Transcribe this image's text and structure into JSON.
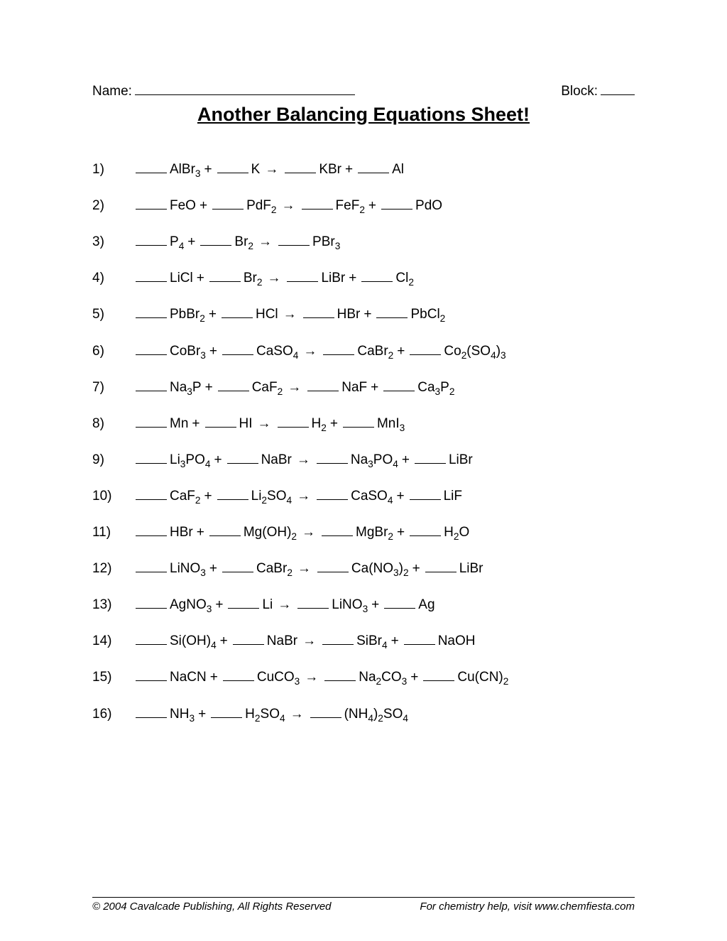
{
  "header": {
    "name_label": "Name:",
    "block_label": "Block:"
  },
  "title": "Another Balancing Equations Sheet!",
  "arrow": "→",
  "plus": "+",
  "problems": [
    {
      "n": "1)",
      "terms": [
        [
          "AlBr",
          "3"
        ],
        [
          "K",
          ""
        ]
      ],
      "prods": [
        [
          "KBr",
          ""
        ],
        [
          "Al",
          ""
        ]
      ]
    },
    {
      "n": "2)",
      "terms": [
        [
          "FeO",
          ""
        ],
        [
          "PdF",
          "2"
        ]
      ],
      "prods": [
        [
          "FeF",
          "2"
        ],
        [
          "PdO",
          ""
        ]
      ]
    },
    {
      "n": "3)",
      "terms": [
        [
          "P",
          "4"
        ],
        [
          "Br",
          "2"
        ]
      ],
      "prods": [
        [
          "PBr",
          "3"
        ]
      ]
    },
    {
      "n": "4)",
      "terms": [
        [
          "LiCl",
          ""
        ],
        [
          "Br",
          "2"
        ]
      ],
      "prods": [
        [
          "LiBr",
          ""
        ],
        [
          "Cl",
          "2"
        ]
      ]
    },
    {
      "n": "5)",
      "terms": [
        [
          "PbBr",
          "2"
        ],
        [
          "HCl",
          ""
        ]
      ],
      "prods": [
        [
          "HBr",
          ""
        ],
        [
          "PbCl",
          "2"
        ]
      ]
    },
    {
      "n": "6)",
      "terms": [
        [
          "CoBr",
          "3"
        ],
        [
          "CaSO",
          "4"
        ]
      ],
      "prods": [
        [
          "CaBr",
          "2"
        ],
        [
          "Co",
          "2",
          "(SO",
          "4",
          ")",
          "3"
        ]
      ]
    },
    {
      "n": "7)",
      "terms": [
        [
          "Na",
          "3",
          "P",
          ""
        ],
        [
          "CaF",
          "2"
        ]
      ],
      "prods": [
        [
          "NaF",
          ""
        ],
        [
          "Ca",
          "3",
          "P",
          "2"
        ]
      ]
    },
    {
      "n": "8)",
      "terms": [
        [
          "Mn",
          ""
        ],
        [
          "HI",
          ""
        ]
      ],
      "prods": [
        [
          "H",
          "2"
        ],
        [
          "MnI",
          "3"
        ]
      ]
    },
    {
      "n": "9)",
      "terms": [
        [
          "Li",
          "3",
          "PO",
          "4"
        ],
        [
          "NaBr",
          ""
        ]
      ],
      "prods": [
        [
          "Na",
          "3",
          "PO",
          "4"
        ],
        [
          "LiBr",
          ""
        ]
      ]
    },
    {
      "n": "10)",
      "terms": [
        [
          "CaF",
          "2"
        ],
        [
          "Li",
          "2",
          "SO",
          "4"
        ]
      ],
      "prods": [
        [
          "CaSO",
          "4"
        ],
        [
          "LiF",
          ""
        ]
      ]
    },
    {
      "n": "11)",
      "terms": [
        [
          "HBr",
          ""
        ],
        [
          "Mg(OH)",
          "2"
        ]
      ],
      "prods": [
        [
          "MgBr",
          "2"
        ],
        [
          "H",
          "2",
          "O",
          ""
        ]
      ]
    },
    {
      "n": "12)",
      "terms": [
        [
          "LiNO",
          "3"
        ],
        [
          "CaBr",
          "2"
        ]
      ],
      "prods": [
        [
          "Ca(NO",
          "3",
          ")",
          "2"
        ],
        [
          "LiBr",
          ""
        ]
      ]
    },
    {
      "n": "13)",
      "terms": [
        [
          "AgNO",
          "3"
        ],
        [
          "Li",
          ""
        ]
      ],
      "prods": [
        [
          "LiNO",
          "3"
        ],
        [
          "Ag",
          ""
        ]
      ]
    },
    {
      "n": "14)",
      "terms": [
        [
          "Si(OH)",
          "4"
        ],
        [
          "NaBr",
          ""
        ]
      ],
      "prods": [
        [
          "SiBr",
          "4"
        ],
        [
          "NaOH",
          ""
        ]
      ]
    },
    {
      "n": "15)",
      "terms": [
        [
          "NaCN",
          ""
        ],
        [
          "CuCO",
          "3"
        ]
      ],
      "prods": [
        [
          "Na",
          "2",
          "CO",
          "3"
        ],
        [
          "Cu(CN)",
          "2"
        ]
      ]
    },
    {
      "n": "16)",
      "terms": [
        [
          "NH",
          "3"
        ],
        [
          "H",
          "2",
          "SO",
          "4"
        ]
      ],
      "prods": [
        [
          "(NH",
          "4",
          ")",
          "2",
          "SO",
          "4"
        ]
      ]
    }
  ],
  "footer": {
    "left": "© 2004 Cavalcade Publishing, All Rights Reserved",
    "right": "For chemistry help, visit www.chemfiesta.com"
  }
}
